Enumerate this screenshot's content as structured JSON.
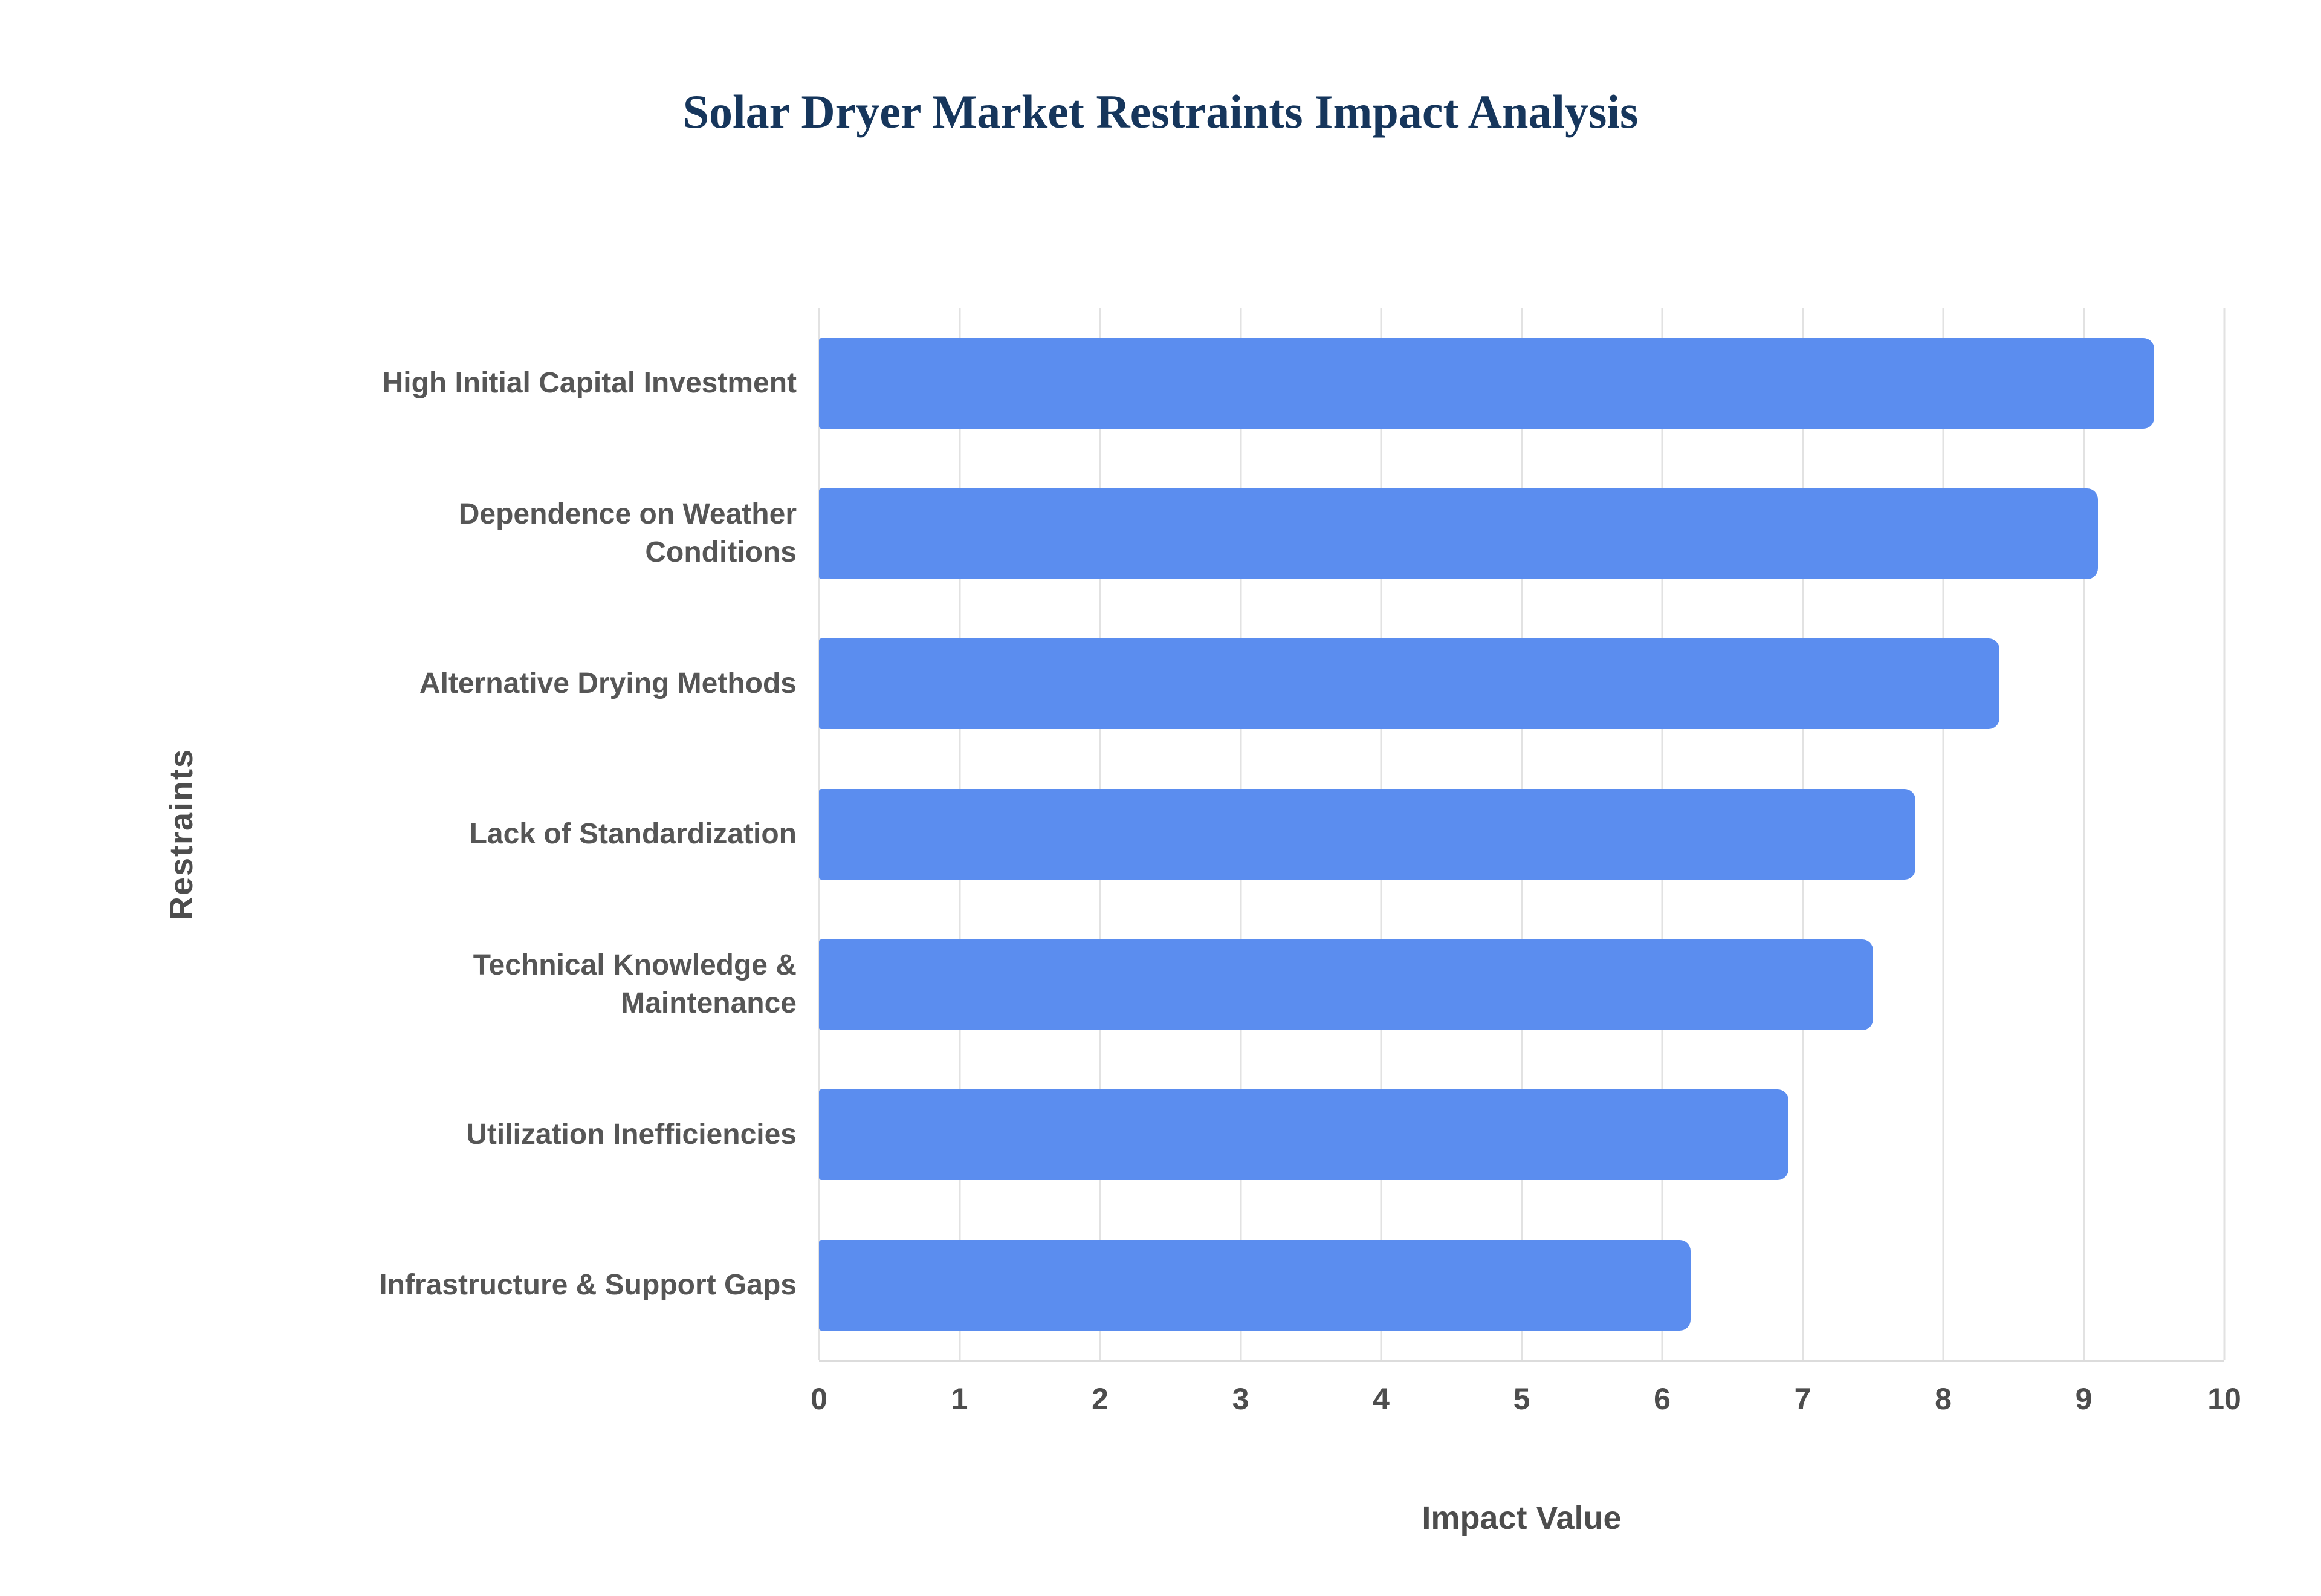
{
  "page": {
    "background": "#ffffff"
  },
  "chart_data": {
    "type": "bar",
    "orientation": "horizontal",
    "title": "Solar Dryer Market Restraints Impact Analysis",
    "categories": [
      "High Initial Capital Investment",
      "Dependence on Weather Conditions",
      "Alternative Drying Methods",
      "Lack of Standardization",
      "Technical Knowledge & Maintenance",
      "Utilization Inefficiencies",
      "Infrastructure & Support Gaps"
    ],
    "values": [
      9.5,
      9.1,
      8.4,
      7.8,
      7.5,
      6.9,
      6.2
    ],
    "xlabel": "Impact Value",
    "ylabel": "Restraints",
    "xlim": [
      0,
      10
    ],
    "xticks": [
      0,
      1,
      2,
      3,
      4,
      5,
      6,
      7,
      8,
      9,
      10
    ],
    "grid": "vertical",
    "legend": "none",
    "colors": {
      "bar": "#5b8def",
      "grid": "#e2e2e2",
      "axis_line": "#dcdcdc",
      "title": "#16365c",
      "category_label": "#565656",
      "tick_label": "#4d4d4d",
      "axis_title": "#4d4d4d"
    }
  }
}
